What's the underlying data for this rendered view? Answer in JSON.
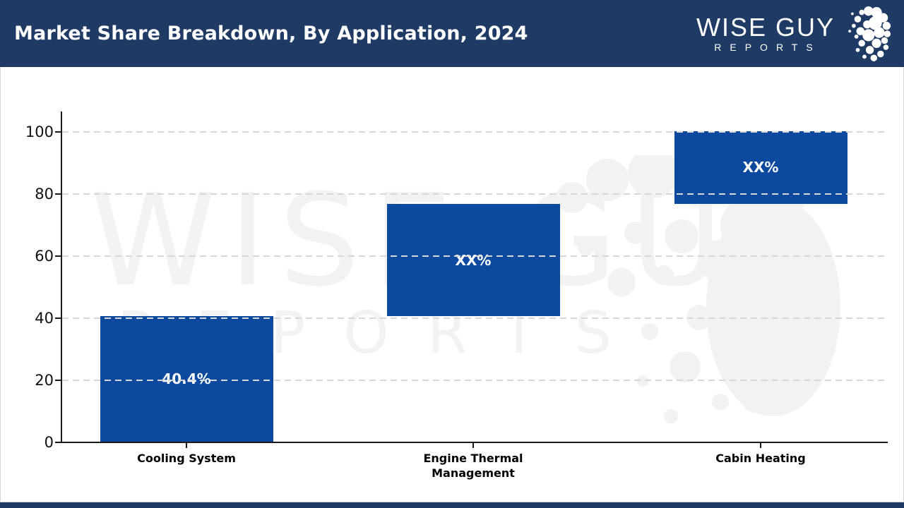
{
  "header": {
    "title": "Market Share Breakdown, By Application, 2024",
    "logo": {
      "brand_line1": "WISE GUY",
      "brand_line2": "REPORTS"
    }
  },
  "watermark": {
    "line1": "WISE GUY",
    "line2": "REPORTS"
  },
  "chart_data": {
    "type": "bar",
    "subtype": "floating-stacked-segments",
    "title": "Market Share Breakdown, By Application, 2024",
    "categories": [
      "Cooling System",
      "Engine Thermal Management",
      "Cabin Heating"
    ],
    "bars": [
      {
        "category": "Cooling System",
        "start": 0,
        "end": 40.4,
        "label": "40.4%"
      },
      {
        "category": "Engine Thermal Management",
        "start": 40.4,
        "end": 76.5,
        "label": "XX%"
      },
      {
        "category": "Cabin Heating",
        "start": 76.6,
        "end": 100,
        "label": "XX%"
      }
    ],
    "y_ticks": [
      0,
      20,
      40,
      60,
      80,
      100
    ],
    "ylim": [
      0,
      106
    ],
    "xlabel": "",
    "ylabel": "",
    "grid": "horizontal dashed",
    "legend_position": "none",
    "bar_color": "#0d4a9f",
    "value_label_color": "#ffffff"
  },
  "colors": {
    "header_bg": "#1f3a64",
    "footer_bg": "#1f3a64",
    "bar": "#0d4a9f",
    "gridline": "#d7d7d7",
    "axis": "#1a1a1a",
    "watermark": "#f2f2f2"
  }
}
